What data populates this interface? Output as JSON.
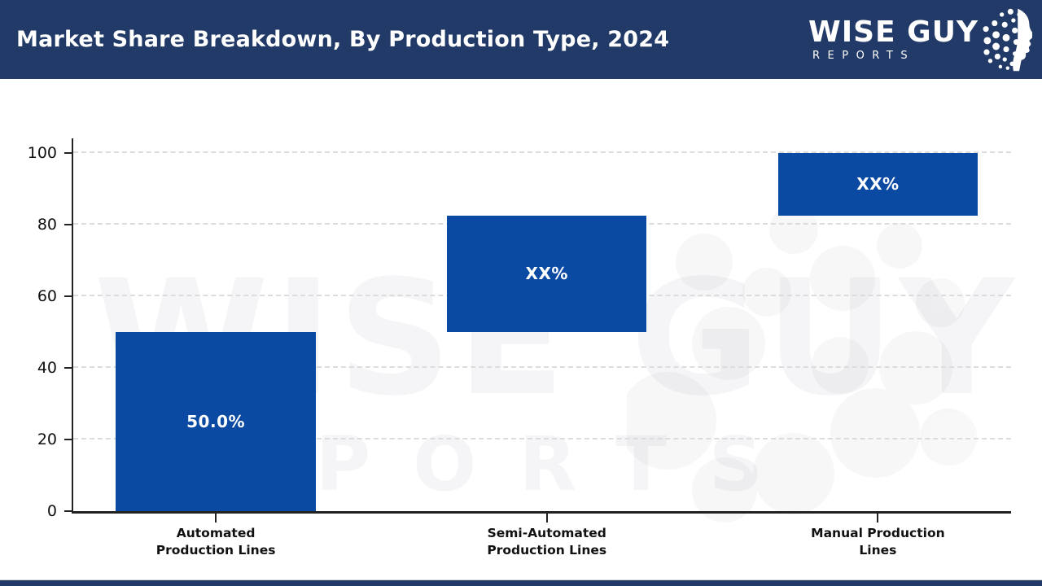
{
  "header": {
    "title": "Market Share Breakdown, By Production Type, 2024",
    "logo": {
      "name": "WISE GUY",
      "tagline": "REPORTS"
    }
  },
  "watermark": {
    "line1": "WISE GUY",
    "line2": "REPORTS"
  },
  "chart_data": {
    "type": "bar",
    "subtype": "floating-waterfall",
    "title": "Market Share Breakdown, By Production Type, 2024",
    "categories": [
      [
        "Automated",
        "Production Lines"
      ],
      [
        "Semi-Automated",
        "Production Lines"
      ],
      [
        "Manual Production",
        "Lines"
      ]
    ],
    "segments": [
      {
        "category": "Automated Production Lines",
        "start": 0,
        "end": 50,
        "value_label": "50.0%"
      },
      {
        "category": "Semi-Automated Production Lines",
        "start": 50,
        "end": 82.5,
        "value_label": "XX%"
      },
      {
        "category": "Manual Production Lines",
        "start": 82.5,
        "end": 100,
        "value_label": "XX%"
      }
    ],
    "yticks": [
      0,
      20,
      40,
      60,
      80,
      100
    ],
    "ylim": [
      0,
      104
    ],
    "xlabel": "",
    "ylabel": "",
    "grid": "dashed-horizontal",
    "legend": "none",
    "bar_color": "#0b4aa2",
    "value_label_color": "#ffffff"
  }
}
